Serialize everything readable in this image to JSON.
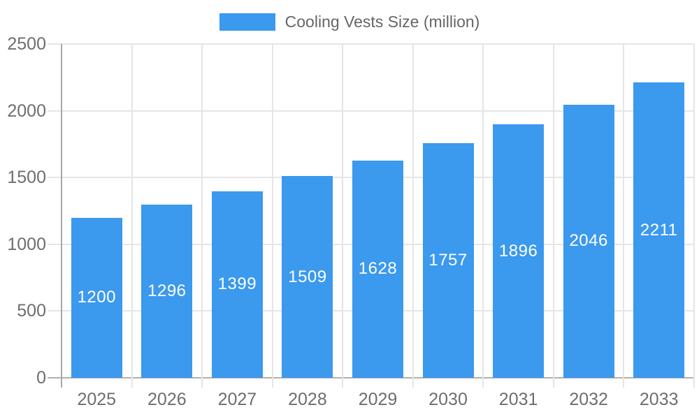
{
  "chart_data": {
    "type": "bar",
    "title": "Cooling Vests Size (million)",
    "legend": {
      "label": "Cooling Vests Size (million)",
      "position": "top-center"
    },
    "categories": [
      "2025",
      "2026",
      "2027",
      "2028",
      "2029",
      "2030",
      "2031",
      "2032",
      "2033"
    ],
    "series": [
      {
        "name": "Cooling Vests Size (million)",
        "values": [
          1200,
          1296,
          1399,
          1509,
          1628,
          1757,
          1896,
          2046,
          2211
        ]
      }
    ],
    "xlabel": "",
    "ylabel": "",
    "ylim": [
      0,
      2500
    ],
    "yticks": [
      0,
      500,
      1000,
      1500,
      2000,
      2500
    ],
    "grid": true,
    "value_labels": "inside-center",
    "colors": {
      "bar": "#3B99EE",
      "value_label": "#FFFFFF",
      "grid": "#E5E5E5",
      "axis": "#B0B0B0",
      "tick_label": "#6E6E6E",
      "legend_text": "#666666",
      "background": "#FFFFFF"
    }
  }
}
